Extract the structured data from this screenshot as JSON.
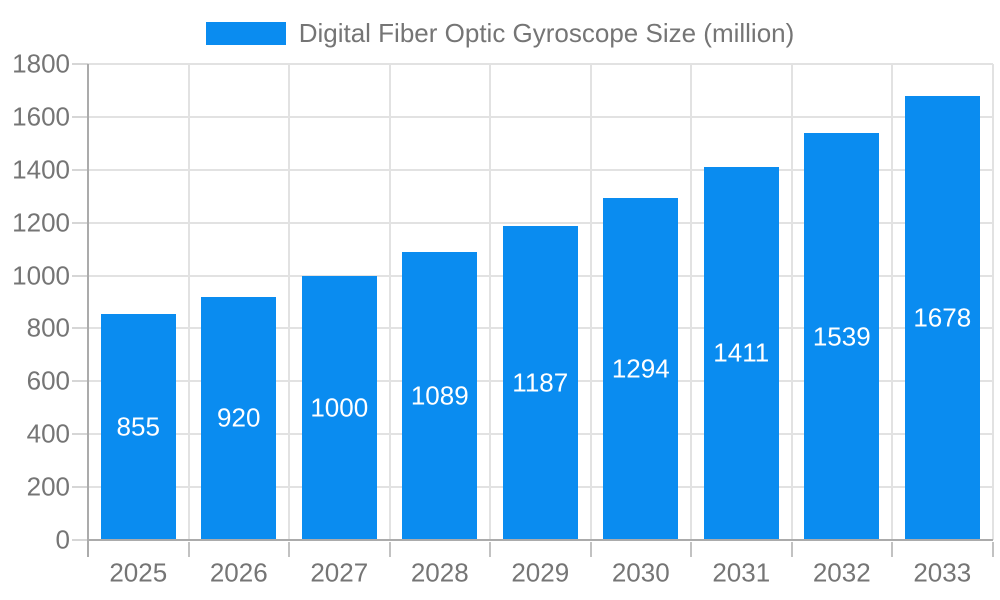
{
  "legend": {
    "label": "Digital Fiber Optic Gyroscope Size (million)"
  },
  "colors": {
    "bar": "#0a8cf0",
    "bar_label_text": "#ffffff",
    "axis_text": "#757575",
    "gridline": "#e2e2e2",
    "axis_line": "#ababab"
  },
  "chart_data": {
    "type": "bar",
    "title": "Digital Fiber Optic Gyroscope Size (million)",
    "categories": [
      "2025",
      "2026",
      "2027",
      "2028",
      "2029",
      "2030",
      "2031",
      "2032",
      "2033"
    ],
    "values": [
      855,
      920,
      1000,
      1089,
      1187,
      1294,
      1411,
      1539,
      1678
    ],
    "xlabel": "",
    "ylabel": "",
    "ylim": [
      0,
      1800
    ],
    "ytick_step": 200,
    "grid": true,
    "legend_position": "top-center",
    "value_label_position": "inside-center"
  }
}
